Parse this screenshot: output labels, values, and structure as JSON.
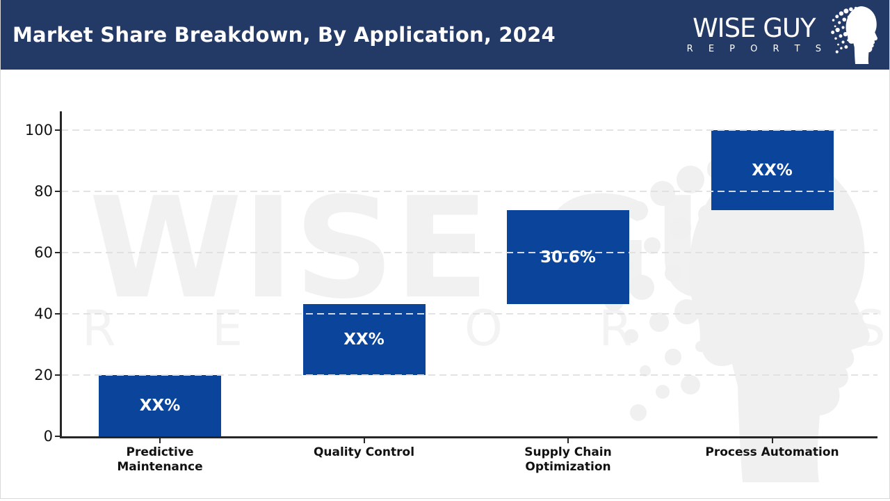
{
  "header": {
    "title": "Market Share Breakdown, By Application, 2024",
    "logo": {
      "line1": "WISE GUY",
      "line2": "R E P O R T S"
    }
  },
  "watermark": {
    "line1": "WISE GU",
    "line2": "R E P O R T S"
  },
  "chart_data": {
    "type": "bar",
    "variant": "floating-waterfall",
    "title": "Market Share Breakdown, By Application, 2024",
    "xlabel": "",
    "ylabel": "",
    "categories": [
      "Predictive Maintenance",
      "Quality Control",
      "Supply Chain Optimization",
      "Process Automation"
    ],
    "category_lines": [
      [
        "Predictive",
        "Maintenance"
      ],
      [
        "Quality Control"
      ],
      [
        "Supply Chain",
        "Optimization"
      ],
      [
        "Process Automation"
      ]
    ],
    "segments": [
      {
        "category": "Predictive Maintenance",
        "start": 0,
        "end": 20,
        "label": "XX%"
      },
      {
        "category": "Quality Control",
        "start": 20,
        "end": 43.2,
        "label": "XX%"
      },
      {
        "category": "Supply Chain Optimization",
        "start": 43.2,
        "end": 73.8,
        "label": "30.6%",
        "value": 30.6
      },
      {
        "category": "Process Automation",
        "start": 73.8,
        "end": 100,
        "label": "XX%"
      }
    ],
    "ylim": [
      0,
      100
    ],
    "yticks": [
      0,
      20,
      40,
      60,
      80,
      100
    ],
    "grid": "horizontal-dashed",
    "legend": "none",
    "colors": {
      "bar": "#0a459b",
      "bar_label": "#ffffff",
      "header_bg": "#233966",
      "grid": "#e0e0e0",
      "axis": "#262626",
      "watermark": "#f1f1f1"
    }
  }
}
